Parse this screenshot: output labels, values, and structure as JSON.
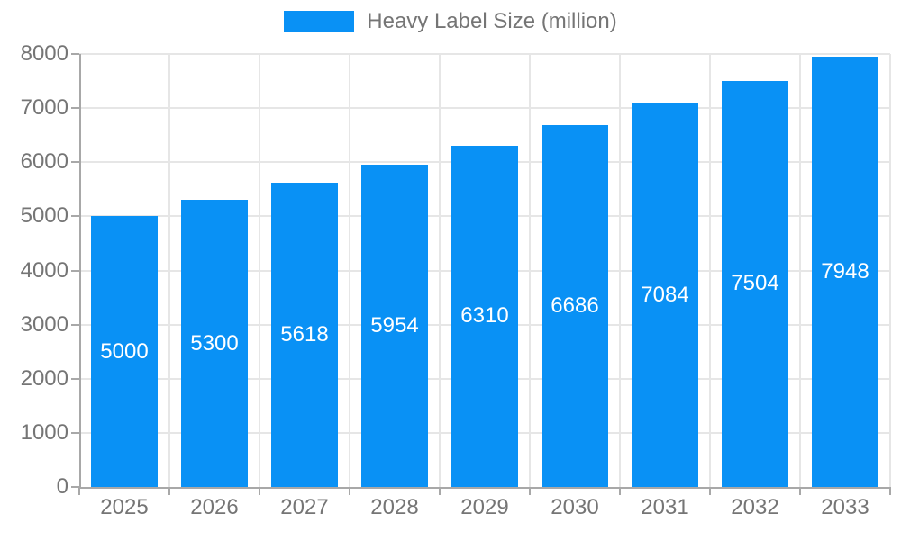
{
  "chart_data": {
    "type": "bar",
    "title": "Heavy Label Size (million)",
    "categories": [
      "2025",
      "2026",
      "2027",
      "2028",
      "2029",
      "2030",
      "2031",
      "2032",
      "2033"
    ],
    "values": [
      5000,
      5300,
      5618,
      5954,
      6310,
      6686,
      7084,
      7504,
      7948
    ],
    "bar_labels": [
      "5000",
      "5300",
      "5618",
      "5954",
      "6310",
      "6686",
      "7084",
      "7504",
      "7948"
    ],
    "xlabel": "",
    "ylabel": "",
    "ylim": [
      0,
      8000
    ],
    "y_ticks": [
      "0",
      "1000",
      "2000",
      "3000",
      "4000",
      "5000",
      "6000",
      "7000",
      "8000"
    ],
    "grid": "on",
    "legend_position": "top-center"
  },
  "colors": {
    "bar": "#0991f5",
    "grid": "#e6e6e6",
    "axis": "#a8a8a8",
    "tick_text": "#757575",
    "bar_label_text": "#ffffff",
    "background": "#ffffff"
  }
}
